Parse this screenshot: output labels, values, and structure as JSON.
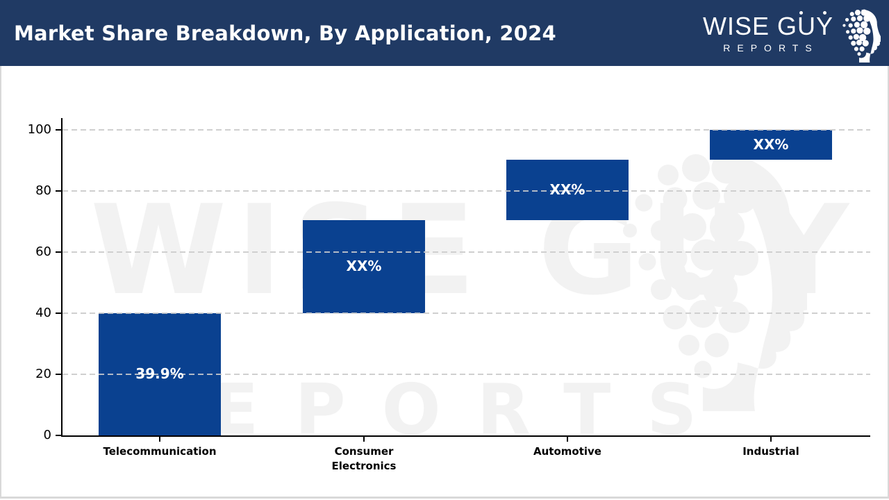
{
  "header": {
    "title": "Market Share Breakdown, By Application, 2024",
    "bg_color": "#203a64",
    "logo": {
      "line1": "WISE GUY",
      "line2": "REPORTS"
    }
  },
  "watermark": {
    "line1": "WISE GUY",
    "line2": "REPORTS"
  },
  "chart_data": {
    "type": "bar",
    "subtype": "waterfall",
    "title": "Market Share Breakdown, By Application, 2024",
    "categories": [
      "Telecommunication",
      "Consumer Electronics",
      "Automotive",
      "Industrial"
    ],
    "category_lines": [
      [
        "Telecommunication"
      ],
      [
        "Consumer",
        "Electronics"
      ],
      [
        "Automotive"
      ],
      [
        "Industrial"
      ]
    ],
    "series": [
      {
        "name": "Market Share",
        "segments": [
          {
            "category": "Telecommunication",
            "start": 0,
            "end": 39.9,
            "label": "39.9%"
          },
          {
            "category": "Consumer Electronics",
            "start": 39.9,
            "end": 70.4,
            "label": "XX%"
          },
          {
            "category": "Automotive",
            "start": 70.4,
            "end": 90.2,
            "label": "XX%"
          },
          {
            "category": "Industrial",
            "start": 90.2,
            "end": 100,
            "label": "XX%"
          }
        ]
      }
    ],
    "xlabel": "",
    "ylabel": "",
    "ylim": [
      0,
      100
    ],
    "yticks": [
      0,
      20,
      40,
      60,
      80,
      100
    ],
    "grid": {
      "axis": "y",
      "style": "dashed",
      "color": "#cfcfcf"
    },
    "legend": "none",
    "bar_color": "#0a4190",
    "bar_label_color": "#ffffff",
    "axis_color": "#000000"
  }
}
